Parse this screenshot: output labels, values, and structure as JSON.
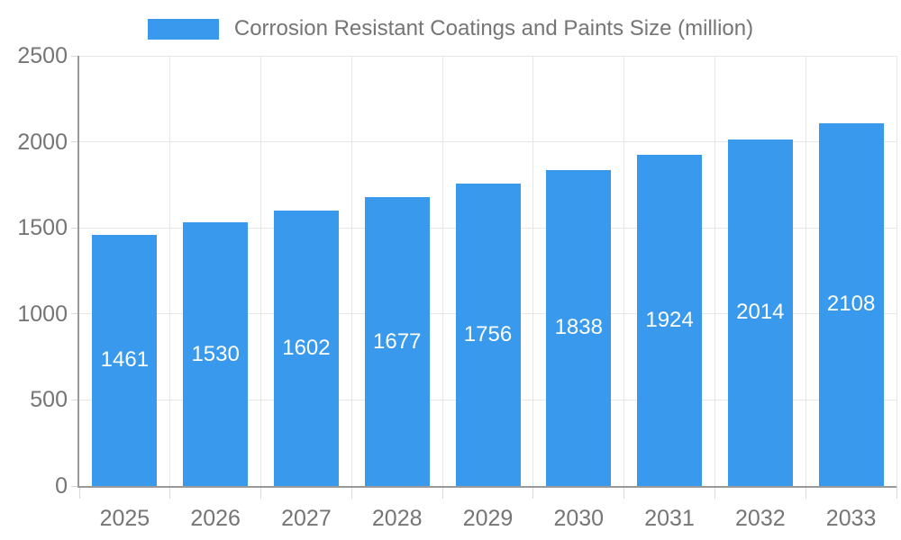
{
  "chart_data": {
    "type": "bar",
    "title": "Corrosion Resistant Coatings and Paints Size (million)",
    "categories": [
      "2025",
      "2026",
      "2027",
      "2028",
      "2029",
      "2030",
      "2031",
      "2032",
      "2033"
    ],
    "values": [
      1461,
      1530,
      1602,
      1677,
      1756,
      1838,
      1924,
      2014,
      2108
    ],
    "xlabel": "",
    "ylabel": "",
    "ylim": [
      0,
      2500
    ],
    "yticks": [
      0,
      500,
      1000,
      1500,
      2000,
      2500
    ],
    "grid": true,
    "legend_position": "top",
    "value_labels": "centered-inside-bars",
    "colors": {
      "bar": "#3999EC",
      "axis": "#999999",
      "grid": "#e6e6e6",
      "tick": "#d9d9d9",
      "label_text": "#757575",
      "value_label": "#ffffff",
      "background": "#ffffff"
    }
  }
}
